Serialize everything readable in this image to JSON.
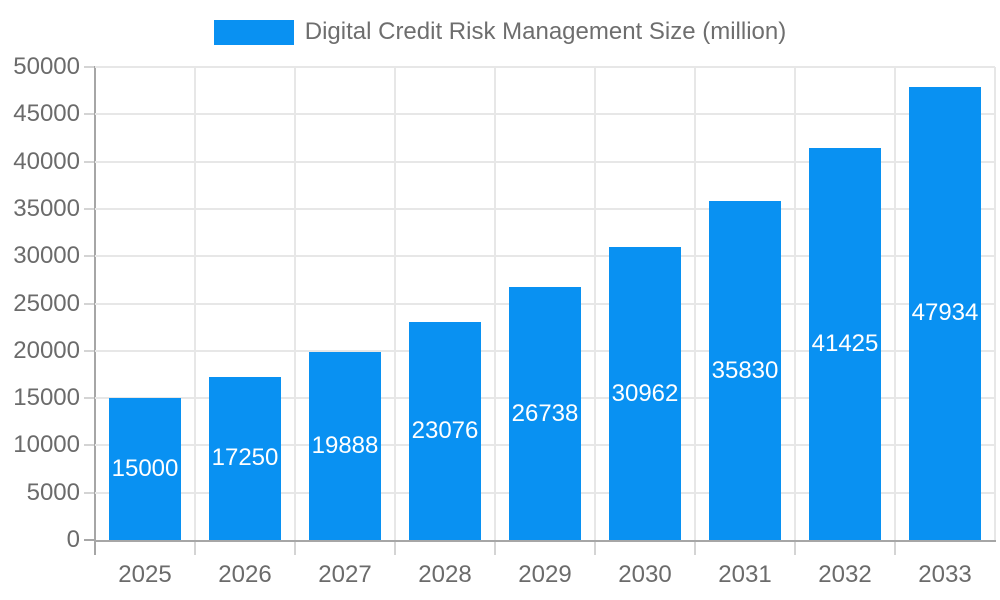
{
  "legend": {
    "label": "Digital Credit Risk Management Size (million)"
  },
  "chart_data": {
    "type": "bar",
    "title": "Digital Credit Risk Management Size (million)",
    "categories": [
      "2025",
      "2026",
      "2027",
      "2028",
      "2029",
      "2030",
      "2031",
      "2032",
      "2033"
    ],
    "values": [
      15000,
      17250,
      19888,
      23076,
      26738,
      30962,
      35830,
      41425,
      47934
    ],
    "xlabel": "",
    "ylabel": "",
    "ylim": [
      0,
      50000
    ],
    "ytick_step": 5000,
    "y_tick_labels": [
      "0",
      "5000",
      "10000",
      "15000",
      "20000",
      "25000",
      "30000",
      "35000",
      "40000",
      "45000",
      "50000"
    ],
    "bar_value_labels": [
      "15000",
      "17250",
      "19888",
      "23076",
      "26738",
      "30962",
      "35830",
      "41425",
      "47934"
    ],
    "legend_position": "top-center",
    "grid": true,
    "colors": {
      "bar": "#0991f2",
      "axis": "#a6a6a6",
      "grid": "#e7e7e7",
      "tick": "#d4d4d4",
      "text": "#6b6b6b",
      "bar_label_text": "#ffffff",
      "background": "#ffffff"
    }
  }
}
